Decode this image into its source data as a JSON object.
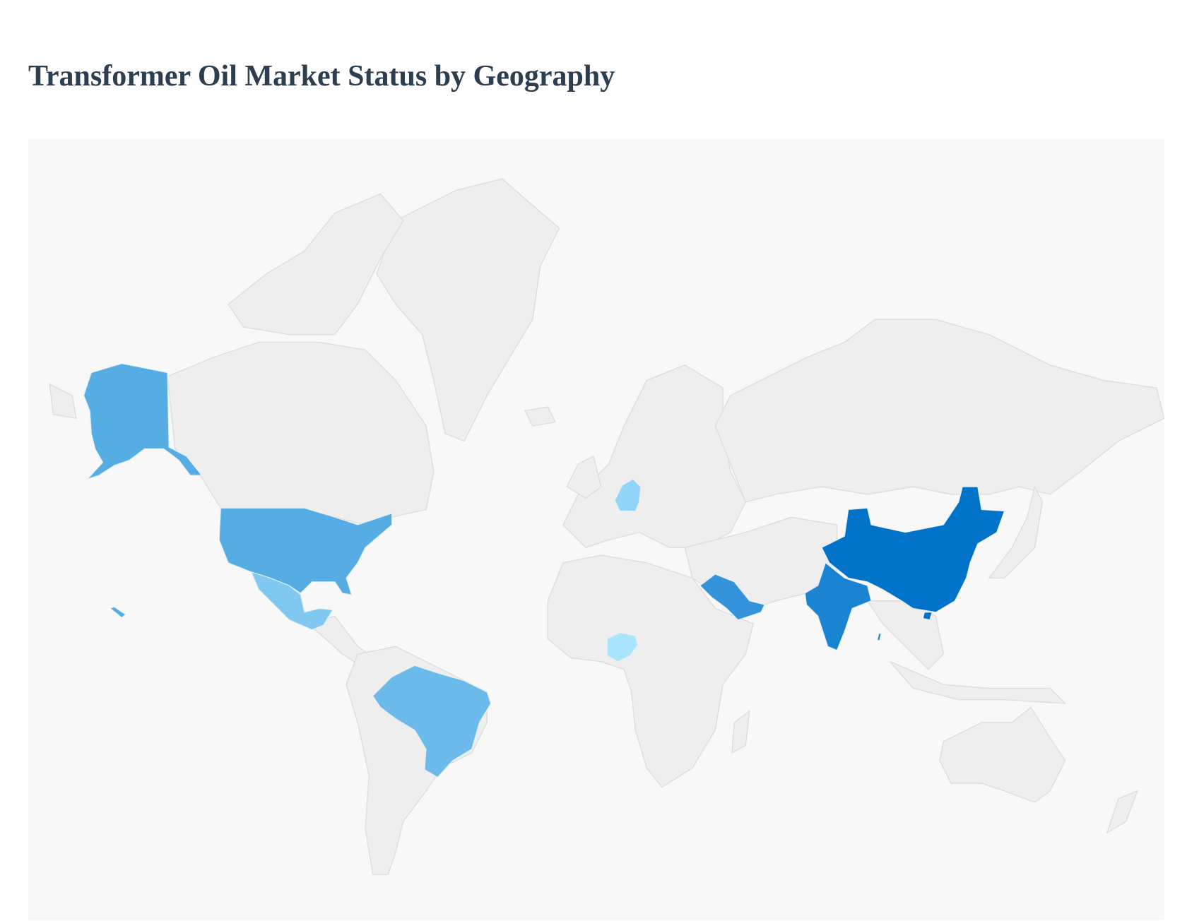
{
  "title": "Transformer Oil Market Status by Geography",
  "map": {
    "type": "choropleth-world",
    "background_color": "#f8f8f8",
    "default_land_color": "#eeeeee",
    "highlighted_regions": [
      {
        "region": "China",
        "color": "#0073c9"
      },
      {
        "region": "India",
        "color": "#1a84d2"
      },
      {
        "region": "Saudi Arabia",
        "color": "#3594d9"
      },
      {
        "region": "United States",
        "color": "#55ade3"
      },
      {
        "region": "Brazil",
        "color": "#6bbaea"
      },
      {
        "region": "Mexico",
        "color": "#80c8f0"
      },
      {
        "region": "Germany",
        "color": "#92d4f7"
      },
      {
        "region": "Nigeria",
        "color": "#a8e4fb"
      }
    ]
  }
}
